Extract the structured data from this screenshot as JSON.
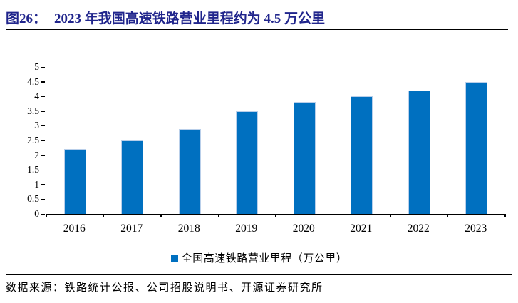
{
  "header": {
    "figure_label": "图26：",
    "title": "2023 年我国高速铁路营业里程约为 4.5 万公里"
  },
  "chart_data": {
    "type": "bar",
    "categories": [
      "2016",
      "2017",
      "2018",
      "2019",
      "2020",
      "2021",
      "2022",
      "2023"
    ],
    "values": [
      2.2,
      2.5,
      2.9,
      3.5,
      3.8,
      4.0,
      4.2,
      4.5
    ],
    "title": "2023 年我国高速铁路营业里程约为 4.5 万公里",
    "xlabel": "",
    "ylabel": "",
    "ylim": [
      0,
      5
    ],
    "yticks": [
      "0",
      "0.5",
      "1",
      "1.5",
      "2",
      "2.5",
      "3",
      "3.5",
      "4",
      "4.5",
      "5"
    ],
    "grid": false,
    "legend": "全国高速铁路营业里程（万公里）",
    "legend_position": "bottom-center"
  },
  "footer": {
    "source": "数据来源：铁路统计公报、公司招股说明书、开源证券研究所"
  },
  "colors": {
    "bar": "#0070C0",
    "title_text": "#20258C",
    "axis": "#000000"
  }
}
